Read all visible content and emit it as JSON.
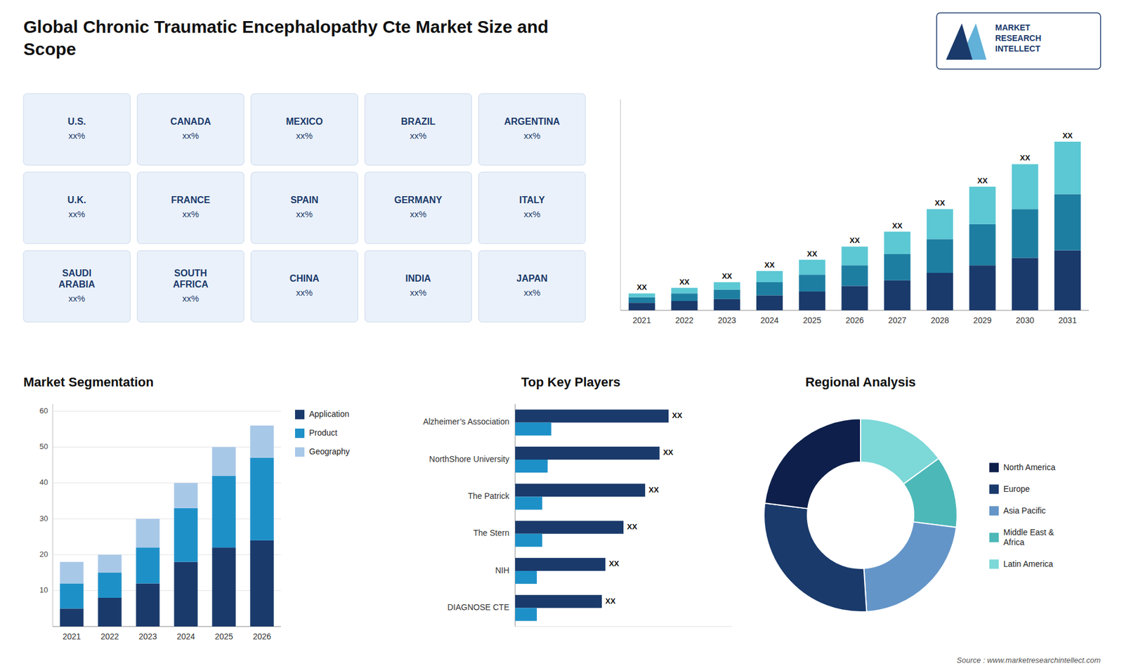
{
  "title": "Global Chronic Traumatic Encephalopathy Cte Market Size and\nScope",
  "annotations": [
    "MARKET\nRESEARCH\nINTELLECT",
    "Source : www.marketresearchintellect.com"
  ],
  "chart_data": [
    {
      "type": "map",
      "categories": [
        "U.S.",
        "CANADA",
        "MEXICO",
        "BRAZIL",
        "ARGENTINA",
        "U.K.",
        "FRANCE",
        "SPAIN",
        "GERMANY",
        "ITALY",
        "SAUDI\nARABIA",
        "SOUTH\nAFRICA",
        "CHINA",
        "INDIA",
        "JAPAN"
      ],
      "annotations": [
        "xx%",
        "xx%",
        "xx%",
        "xx%",
        "xx%",
        "xx%",
        "xx%",
        "xx%",
        "xx%",
        "xx%",
        "xx%",
        "xx%",
        "xx%",
        "xx%",
        "xx%"
      ]
    },
    {
      "type": "bar",
      "stacked": true,
      "categories": [
        "2021",
        "2022",
        "2023",
        "2024",
        "2025",
        "2026",
        "2027",
        "2028",
        "2029",
        "2030",
        "2031"
      ],
      "series": [
        {
          "color": "#1a3a6b",
          "values": [
            2,
            2.5,
            3,
            4,
            5,
            6.5,
            8,
            10,
            12,
            14,
            16
          ]
        },
        {
          "color": "#1e7ea1",
          "values": [
            1.5,
            2,
            2.5,
            3.5,
            4.5,
            5.5,
            7,
            9,
            11,
            13,
            15
          ]
        },
        {
          "color": "#5bc8d4",
          "values": [
            1,
            1.5,
            2,
            3,
            4,
            5,
            6,
            8,
            10,
            12,
            14
          ]
        }
      ],
      "ylim": [
        0,
        56.25
      ],
      "tick_labels": "x",
      "grid": false,
      "annotations": [
        "XX",
        "XX",
        "XX",
        "XX",
        "XX",
        "XX",
        "XX",
        "XX",
        "XX",
        "XX",
        "XX"
      ]
    },
    {
      "type": "bar",
      "title": "Market Segmentation",
      "stacked": true,
      "categories": [
        "2021",
        "2022",
        "2023",
        "2024",
        "2025",
        "2026"
      ],
      "series": [
        {
          "name": "Application",
          "color": "#1a3a6b",
          "values": [
            5,
            8,
            12,
            18,
            22,
            24
          ]
        },
        {
          "name": "Product",
          "color": "#1e90c8",
          "values": [
            7,
            7,
            10,
            15,
            20,
            23
          ]
        },
        {
          "name": "Geography",
          "color": "#a8c8e8",
          "values": [
            6,
            5,
            8,
            7,
            8,
            9
          ]
        }
      ],
      "ylim": [
        0,
        62
      ],
      "yticks": [
        10,
        20,
        30,
        40,
        50,
        60
      ],
      "grid": true,
      "legend": "right"
    },
    {
      "type": "bar",
      "title": "Top Key Players",
      "orientation": "horizontal",
      "categories": [
        "Alzheimer’s Association",
        "NorthShore University",
        "The Patrick",
        "The Stern",
        "NIH",
        "DIAGNOSE CTE"
      ],
      "series": [
        {
          "color": "#1a3a6b",
          "values": [
            85,
            80,
            72,
            60,
            50,
            48
          ],
          "value_labels": [
            "XX",
            "XX",
            "XX",
            "XX",
            "XX",
            "XX"
          ]
        },
        {
          "color": "#1e90c8",
          "values": [
            20,
            18,
            15,
            15,
            12,
            12
          ]
        }
      ],
      "xlim": [
        0,
        120
      ],
      "tick_labels": "y",
      "grid": false
    },
    {
      "type": "donut",
      "title": "Regional Analysis",
      "categories": [
        "Latin America",
        "Middle East &\nAfrica",
        "Asia Pacific",
        "Europe",
        "North America"
      ],
      "values": [
        15,
        12,
        22,
        28,
        23
      ],
      "colors": [
        "#7dd8d8",
        "#4db8b8",
        "#6495c8",
        "#1a3a6b",
        "#0d1f4a"
      ],
      "legend": "right"
    }
  ]
}
